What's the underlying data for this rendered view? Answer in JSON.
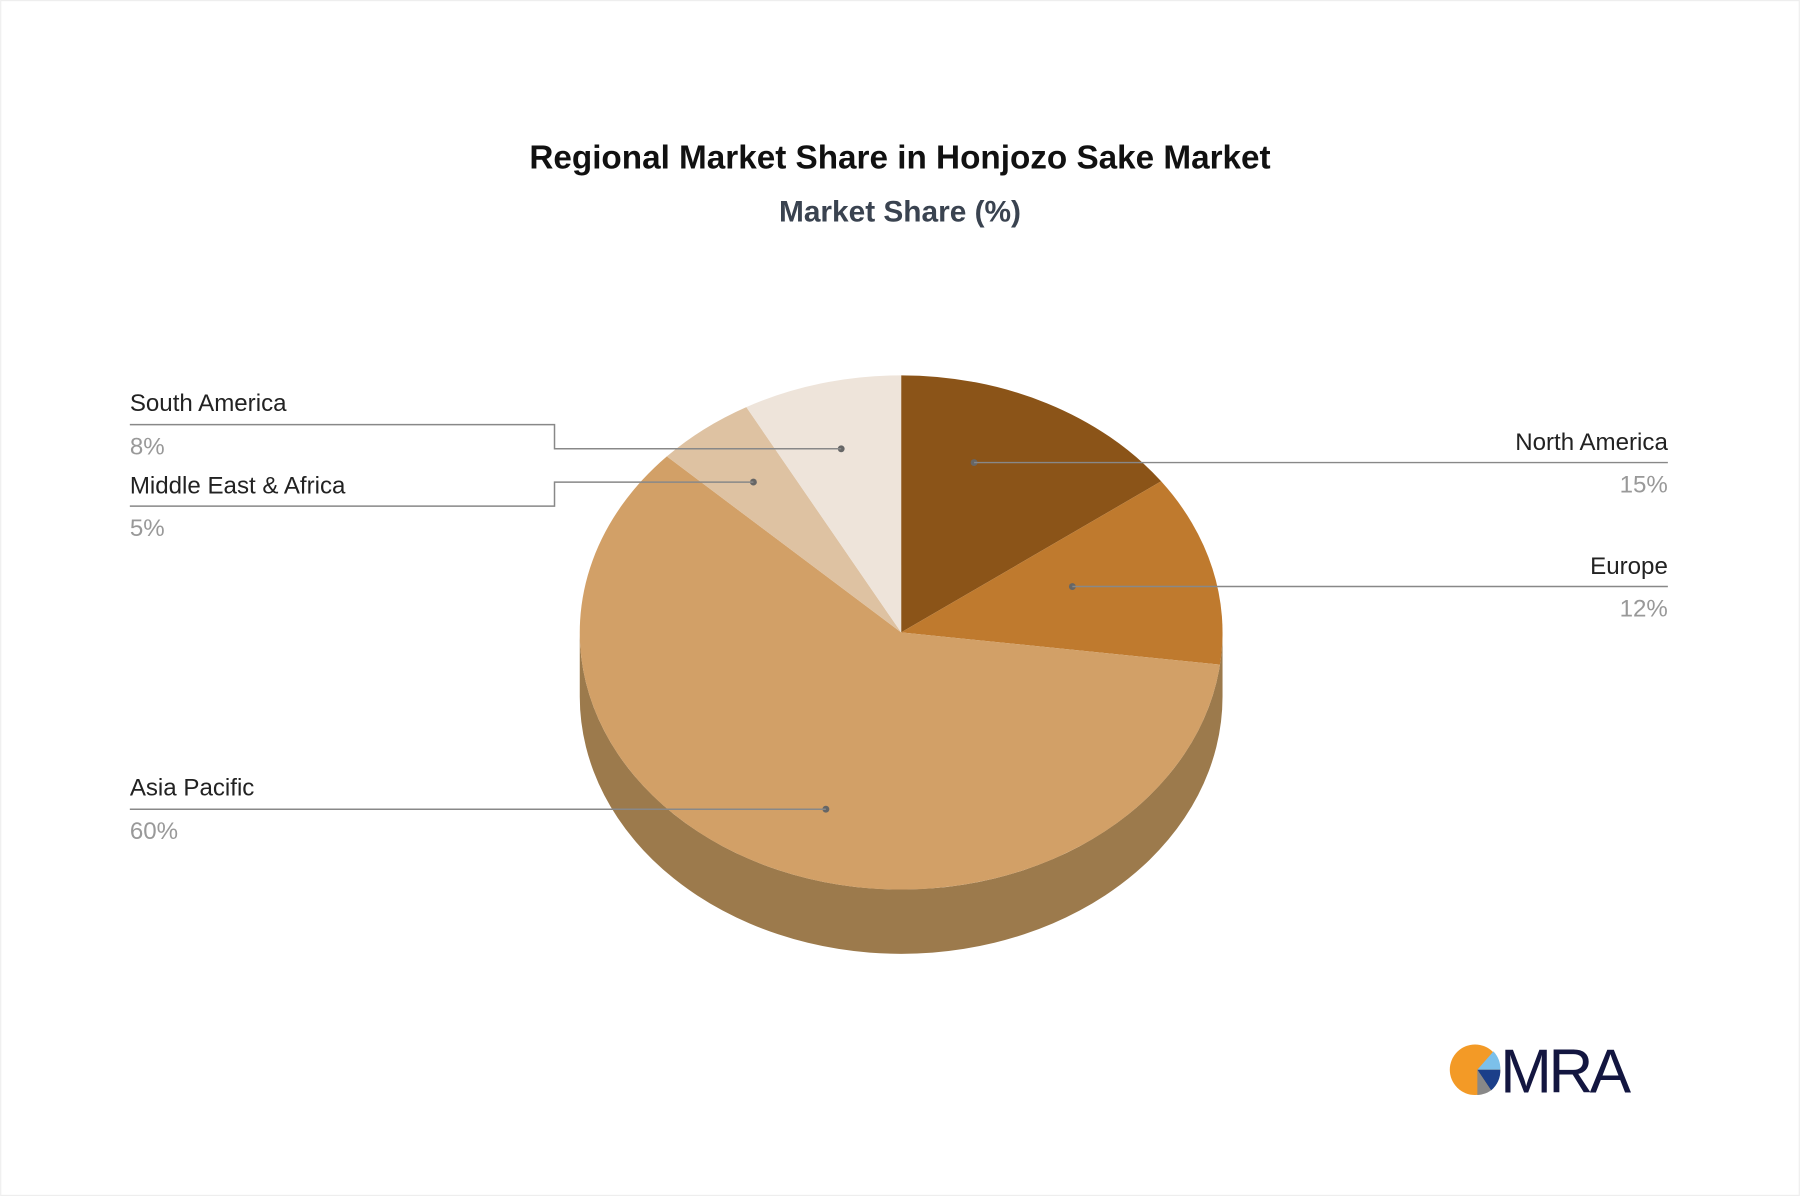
{
  "chart_data": {
    "type": "pie",
    "title": "Regional Market Share in Honjozo Sake Market",
    "subtitle": "Market Share (%)",
    "style": "3d",
    "slices": [
      {
        "label": "North America",
        "value": 15,
        "value_label": "15%",
        "color": "#8B5418"
      },
      {
        "label": "Europe",
        "value": 12,
        "value_label": "12%",
        "color": "#BF7A2E"
      },
      {
        "label": "Asia Pacific",
        "value": 60,
        "value_label": "60%",
        "color": "#D2A067"
      },
      {
        "label": "Middle East & Africa",
        "value": 5,
        "value_label": "5%",
        "color": "#DEC2A2"
      },
      {
        "label": "South America",
        "value": 8,
        "value_label": "8%",
        "color": "#EEE4DA"
      }
    ]
  },
  "logo": {
    "text": "MRA"
  }
}
